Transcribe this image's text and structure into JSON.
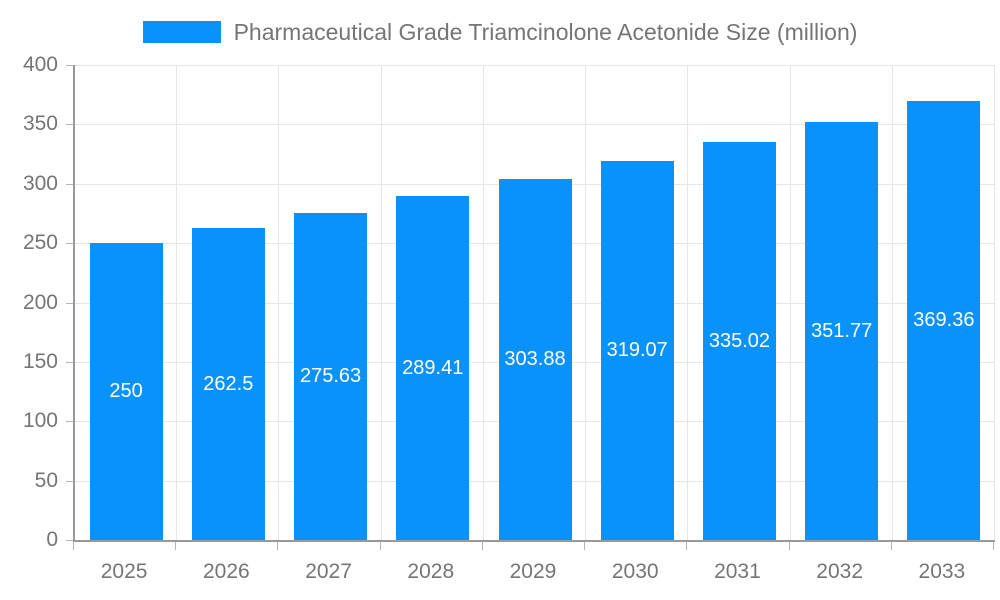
{
  "chart_data": {
    "type": "bar",
    "title": "Pharmaceutical Grade Triamcinolone Acetonide Size (million)",
    "categories": [
      "2025",
      "2026",
      "2027",
      "2028",
      "2029",
      "2030",
      "2031",
      "2032",
      "2033"
    ],
    "values": [
      250,
      262.5,
      275.63,
      289.41,
      303.88,
      319.07,
      335.02,
      351.77,
      369.36
    ],
    "value_labels": [
      "250",
      "262.5",
      "275.63",
      "289.41",
      "303.88",
      "319.07",
      "335.02",
      "351.77",
      "369.36"
    ],
    "xlabel": "",
    "ylabel": "",
    "ylim": [
      0,
      400
    ],
    "y_ticks": [
      0,
      50,
      100,
      150,
      200,
      250,
      300,
      350,
      400
    ],
    "grid": true,
    "legend_position": "top",
    "colors": {
      "bar": "#0992fa",
      "axis_line": "#999999",
      "grid_line": "#e6e6e6",
      "tick_line": "#b3b3b3",
      "axis_label": "#757575",
      "legend_text": "#757575",
      "bar_label": "#ffffff",
      "background": "#ffffff"
    }
  }
}
